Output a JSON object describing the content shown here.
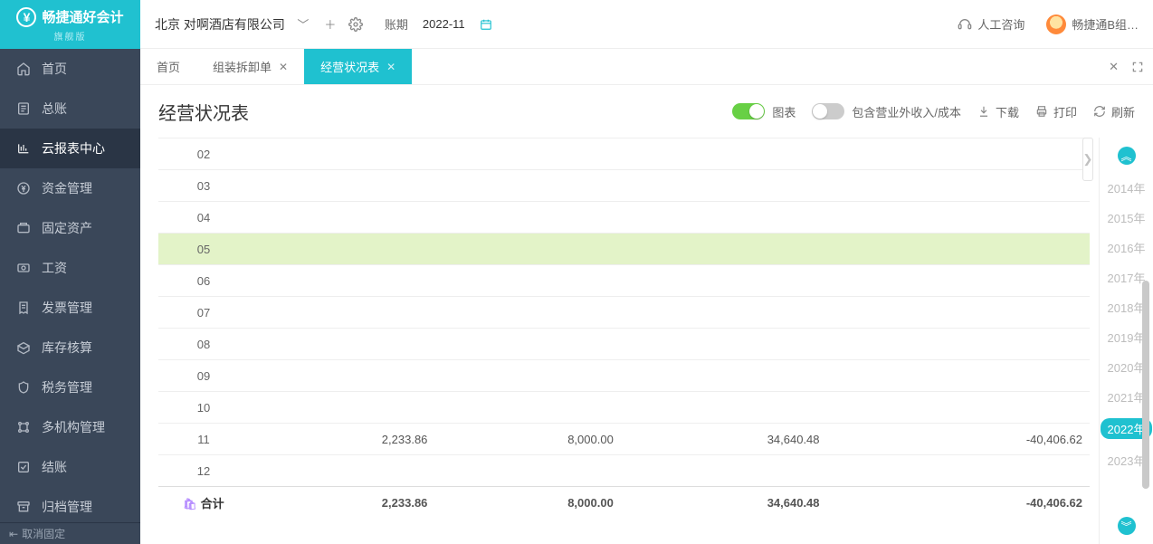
{
  "brand": {
    "name": "畅捷通好会计",
    "edition": "旗舰版"
  },
  "sidebar": {
    "items": [
      {
        "label": "首页",
        "icon": "home"
      },
      {
        "label": "总账",
        "icon": "ledger"
      },
      {
        "label": "云报表中心",
        "icon": "chart",
        "active": true
      },
      {
        "label": "资金管理",
        "icon": "cash"
      },
      {
        "label": "固定资产",
        "icon": "asset"
      },
      {
        "label": "工资",
        "icon": "salary"
      },
      {
        "label": "发票管理",
        "icon": "invoice"
      },
      {
        "label": "库存核算",
        "icon": "stock"
      },
      {
        "label": "税务管理",
        "icon": "tax"
      },
      {
        "label": "多机构管理",
        "icon": "org"
      },
      {
        "label": "结账",
        "icon": "close"
      },
      {
        "label": "归档管理",
        "icon": "archive"
      }
    ],
    "pin_label": "取消固定"
  },
  "topbar": {
    "company": "北京 对啊酒店有限公司",
    "period_label": "账期",
    "period_value": "2022-11",
    "support_label": "人工咨询",
    "user_label": "畅捷通B组…"
  },
  "tabs": [
    {
      "label": "首页",
      "closable": false
    },
    {
      "label": "组装拆卸单",
      "closable": true
    },
    {
      "label": "经营状况表",
      "closable": true,
      "active": true
    }
  ],
  "page": {
    "title": "经营状况表",
    "toggle_chart": {
      "label": "图表",
      "on": true
    },
    "toggle_extra": {
      "label": "包含营业外收入/成本",
      "on": false
    },
    "actions": {
      "download": "下载",
      "print": "打印",
      "refresh": "刷新"
    }
  },
  "table": {
    "highlight_row": "05",
    "row_labels": [
      "02",
      "03",
      "04",
      "05",
      "06",
      "07",
      "08",
      "09",
      "10",
      "11",
      "12"
    ],
    "columns_count": 5,
    "rows": [
      {
        "k": "02",
        "v": [
          "",
          "",
          "",
          "",
          ""
        ]
      },
      {
        "k": "03",
        "v": [
          "",
          "",
          "",
          "",
          ""
        ]
      },
      {
        "k": "04",
        "v": [
          "",
          "",
          "",
          "",
          ""
        ]
      },
      {
        "k": "05",
        "v": [
          "",
          "",
          "",
          "",
          ""
        ]
      },
      {
        "k": "06",
        "v": [
          "",
          "",
          "",
          "",
          ""
        ]
      },
      {
        "k": "07",
        "v": [
          "",
          "",
          "",
          "",
          ""
        ]
      },
      {
        "k": "08",
        "v": [
          "",
          "",
          "",
          "",
          ""
        ]
      },
      {
        "k": "09",
        "v": [
          "",
          "",
          "",
          "",
          ""
        ]
      },
      {
        "k": "10",
        "v": [
          "",
          "",
          "",
          "",
          ""
        ]
      },
      {
        "k": "11",
        "v": [
          "2,233.86",
          "8,000.00",
          "34,640.48",
          "",
          "-40,406.62"
        ]
      },
      {
        "k": "12",
        "v": [
          "",
          "",
          "",
          "",
          ""
        ]
      }
    ],
    "total": {
      "label": "合计",
      "v": [
        "2,233.86",
        "8,000.00",
        "34,640.48",
        "",
        "-40,406.62"
      ]
    }
  },
  "years": {
    "list": [
      "2014年",
      "2015年",
      "2016年",
      "2017年",
      "2018年",
      "2019年",
      "2020年",
      "2021年",
      "2022年",
      "2023年"
    ],
    "active": "2022年"
  },
  "colors": {
    "accent": "#1fc1d0",
    "sidebar_bg": "#3a4759",
    "highlight_row": "#e3f3c8",
    "switch_on": "#68d045",
    "text_muted": "#888888",
    "border": "#eeeeee"
  }
}
